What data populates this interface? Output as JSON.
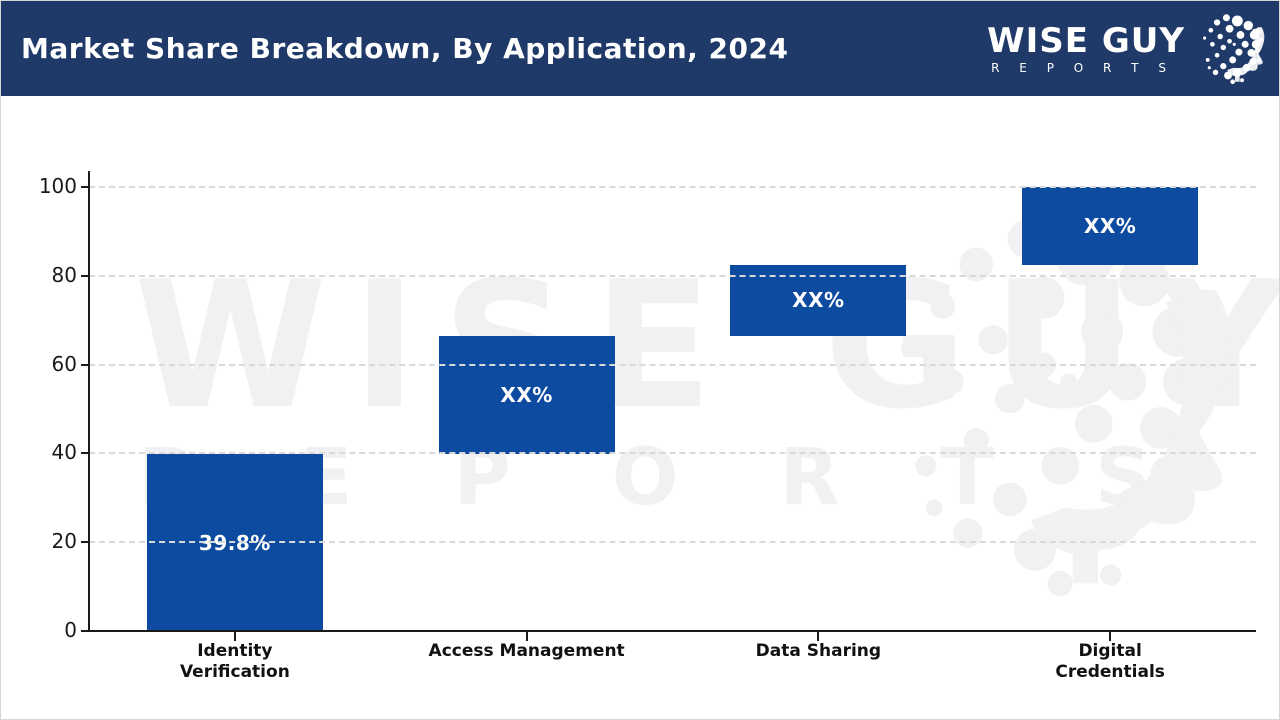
{
  "header": {
    "title": "Market Share Breakdown, By Application, 2024",
    "logo": {
      "name_top": "WISE GUY",
      "name_bottom": "R E P O R T S",
      "icon": "dotted-head-profile"
    }
  },
  "watermark": {
    "line1": "WISE GUY",
    "line2": "R E P O R T S",
    "icon": "dotted-head-profile"
  },
  "colors": {
    "header_bg": "#1f3a68",
    "bar": "#0d4ba0",
    "axis": "#1a1a1a",
    "grid": "#d9d9d9",
    "watermark": "#f1f1f3",
    "value_label": "#ffffff"
  },
  "chart_data": {
    "type": "bar",
    "variant": "waterfall",
    "title": "Market Share Breakdown, By Application, 2024",
    "categories": [
      "Identity Verification",
      "Access Management",
      "Data Sharing",
      "Digital Credentials"
    ],
    "category_label_lines": [
      [
        "Identity",
        "Verification"
      ],
      [
        "Access Management"
      ],
      [
        "Data Sharing"
      ],
      [
        "Digital",
        "Credentials"
      ]
    ],
    "segments": [
      {
        "category": "Identity Verification",
        "start": 0,
        "end": 39.8,
        "label": "39.8%"
      },
      {
        "category": "Access Management",
        "start": 39.8,
        "end": 66.5,
        "label": "XX%"
      },
      {
        "category": "Data Sharing",
        "start": 66.5,
        "end": 82.5,
        "label": "XX%"
      },
      {
        "category": "Digital Credentials",
        "start": 82.5,
        "end": 100,
        "label": "XX%"
      }
    ],
    "xlabel": "",
    "ylabel": "",
    "ylim": [
      0,
      100
    ],
    "yticks": [
      0,
      20,
      40,
      60,
      80,
      100
    ],
    "grid": "horizontal-dashed",
    "legend": "none"
  }
}
